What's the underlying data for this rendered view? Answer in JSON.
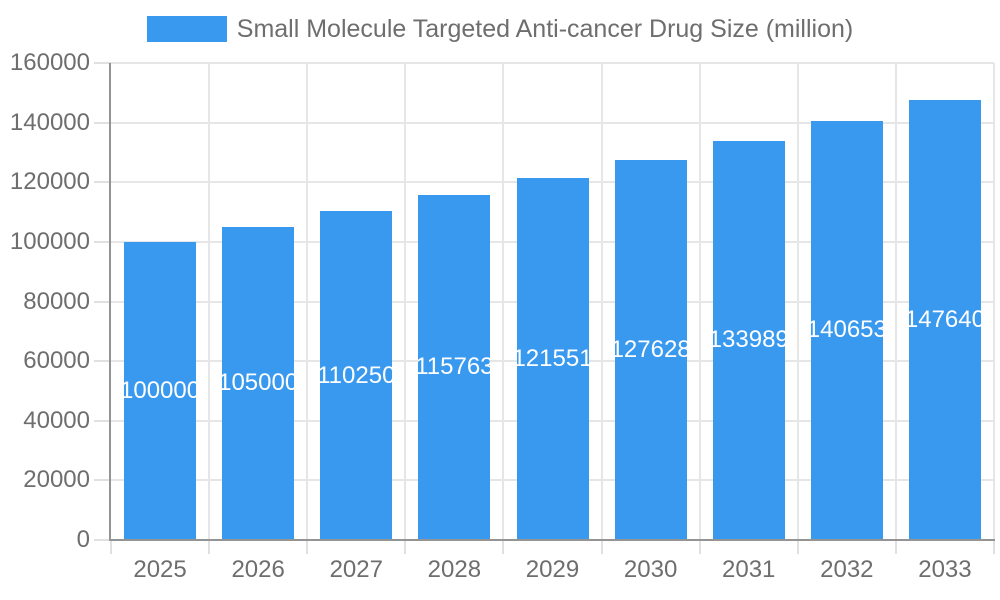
{
  "legend": {
    "label": "Small Molecule Targeted Anti-cancer Drug Size (million)"
  },
  "colors": {
    "bar": "#3999ee",
    "grid": "#e6e6e6",
    "axis": "#949494",
    "tick": "#e0e0e0",
    "text": "#6e6e6e",
    "bar_label": "#ffffff",
    "background": "#ffffff"
  },
  "chart_data": {
    "type": "bar",
    "title": "Small Molecule Targeted Anti-cancer Drug Size (million)",
    "categories": [
      "2025",
      "2026",
      "2027",
      "2028",
      "2029",
      "2030",
      "2031",
      "2032",
      "2033"
    ],
    "values": [
      100000,
      105000,
      110250,
      115763,
      121551,
      127628,
      133989,
      140653,
      147640
    ],
    "data_labels": [
      "100000",
      "105000",
      "110250",
      "115763",
      "121551",
      "127628",
      "133989",
      "140653",
      "147640"
    ],
    "xlabel": "",
    "ylabel": "",
    "ylim": [
      0,
      160000
    ],
    "ytick_step": 20000,
    "ytick_labels": [
      "0",
      "20000",
      "40000",
      "60000",
      "80000",
      "100000",
      "120000",
      "140000",
      "160000"
    ],
    "grid": true,
    "grid_vertical_at_category_boundaries": true,
    "legend_position": "top-center",
    "bar_label_position": "inside-center"
  }
}
